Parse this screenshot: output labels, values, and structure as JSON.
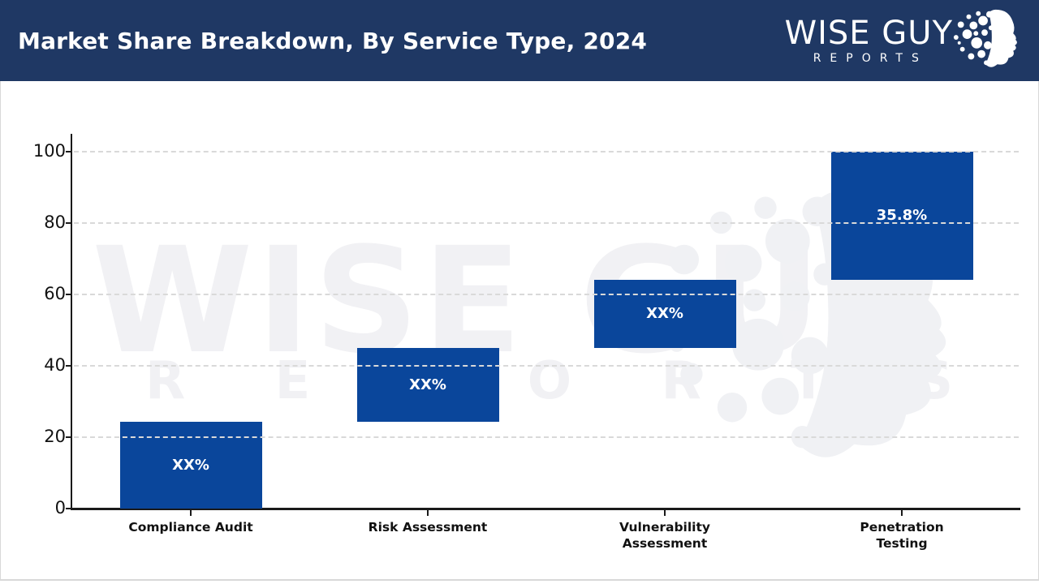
{
  "header": {
    "title": "Market Share Breakdown, By Service Type, 2024",
    "bg_color": "#1f3864",
    "logo": {
      "name": "WISE GUY",
      "sub": "REPORTS",
      "icon": "dotted-face-profile"
    }
  },
  "watermark": {
    "line1": "WISE GUY",
    "line2": "R E P O R T S"
  },
  "chart_data": {
    "type": "bar",
    "subtype": "waterfall-floating-bars",
    "title": "Market Share Breakdown, By Service Type, 2024",
    "xlabel": "",
    "ylabel": "",
    "ylim": [
      0,
      100
    ],
    "yticks": [
      0,
      20,
      40,
      60,
      80,
      100
    ],
    "grid": "horizontal-dashed-above-bars",
    "legend": "none",
    "bar_color": "#0a469b",
    "categories": [
      "Compliance Audit",
      "Risk Assessment",
      "Vulnerability Assessment",
      "Penetration Testing"
    ],
    "category_lines": [
      [
        "Compliance Audit"
      ],
      [
        "Risk Assessment"
      ],
      [
        "Vulnerability",
        "Assessment"
      ],
      [
        "Penetration",
        "Testing"
      ]
    ],
    "segments": [
      {
        "category": "Compliance Audit",
        "start": 0,
        "end": 24.3,
        "value_label": "XX%"
      },
      {
        "category": "Risk Assessment",
        "start": 24.3,
        "end": 45.1,
        "value_label": "XX%"
      },
      {
        "category": "Vulnerability Assessment",
        "start": 45.1,
        "end": 64.2,
        "value_label": "XX%"
      },
      {
        "category": "Penetration Testing",
        "start": 64.2,
        "end": 100,
        "value_label": "35.8%"
      }
    ]
  },
  "colors": {
    "header_navy": "#1f3864",
    "bar_blue": "#0a469b",
    "gridline": "#d9d9d9",
    "axis": "#1a1a1a",
    "watermark": "#f1f1f4",
    "page_border": "#d8d8d8"
  }
}
